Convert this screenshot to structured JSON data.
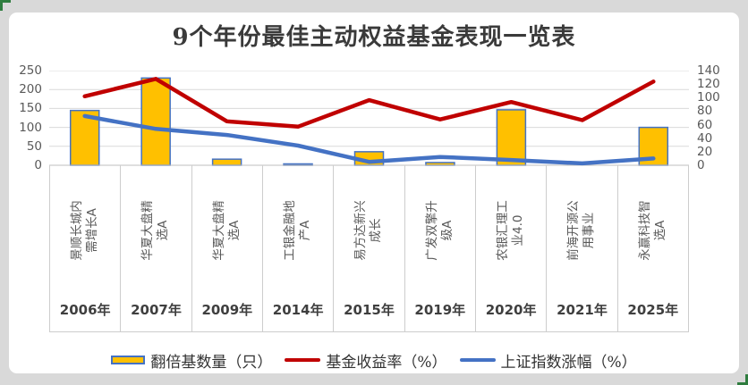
{
  "window": {
    "background": "#d9d9d9",
    "card_background": "#ffffff",
    "corner_mark_color": "#2f7d3f"
  },
  "title": "9个年份最佳主动权益基金表现一览表",
  "chart_data": {
    "type": "combo-bar-line",
    "title": "9个年份最佳主动权益基金表现一览表",
    "categories": [
      "2006年",
      "2007年",
      "2009年",
      "2014年",
      "2015年",
      "2019年",
      "2020年",
      "2021年",
      "2025年"
    ],
    "category_fund_labels": [
      "景顺长城内需增长A",
      "华夏大盘精选A",
      "华夏大盘精选A",
      "工银金融地产A",
      "易方达新兴成长",
      "广发双擎升级A",
      "农银汇理工业4.0",
      "前海开源公用事业",
      "永赢科技智选A"
    ],
    "series": [
      {
        "name": "翻倍基数量（只）",
        "type": "bar",
        "axis": "right",
        "color": "#FFC000",
        "border_color": "#4472C4",
        "values": [
          81,
          129,
          9,
          2,
          20,
          4,
          82,
          0,
          56
        ]
      },
      {
        "name": "基金收益率（%）",
        "type": "line",
        "axis": "left",
        "color": "#C00000",
        "values": [
          182,
          228,
          116,
          102,
          172,
          121,
          167,
          119,
          221
        ]
      },
      {
        "name": "上证指数涨幅（%）",
        "type": "line",
        "axis": "left",
        "color": "#4472C4",
        "values": [
          130,
          96,
          80,
          52,
          9,
          22,
          14,
          5,
          18
        ]
      }
    ],
    "axes": {
      "left": {
        "min": 0,
        "max": 250,
        "step": 50
      },
      "right": {
        "min": 0,
        "max": 140,
        "step": 20
      }
    },
    "gridlines": "horizontal",
    "gridline_color": "#d9d9d9",
    "axis_line_color": "#bfbfbf",
    "legend_position": "bottom"
  }
}
